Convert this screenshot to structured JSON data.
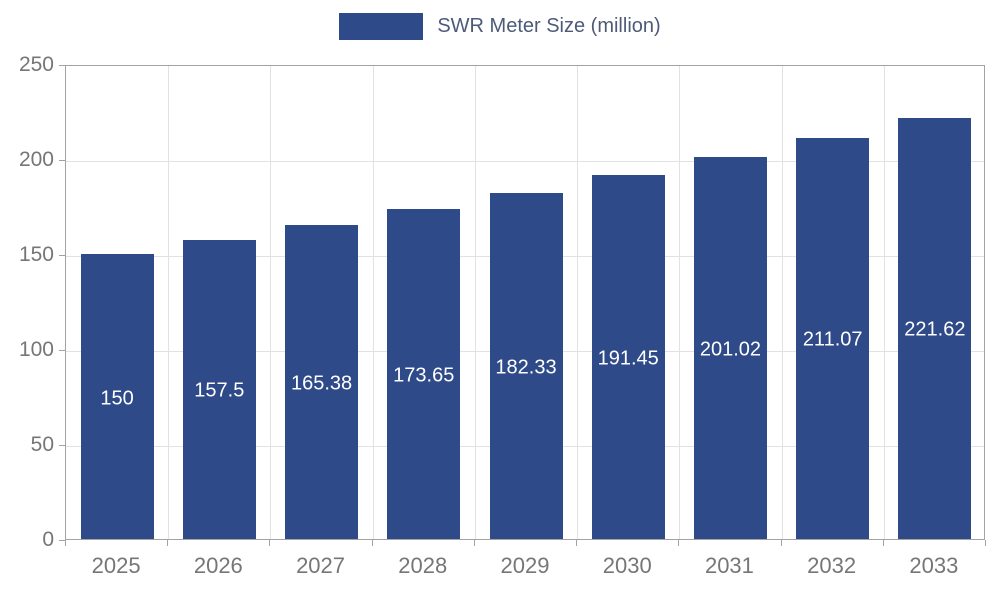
{
  "chart_data": {
    "type": "bar",
    "title": "SWR Meter Size (million)",
    "categories": [
      "2025",
      "2026",
      "2027",
      "2028",
      "2029",
      "2030",
      "2031",
      "2032",
      "2033"
    ],
    "values": [
      150,
      157.5,
      165.38,
      173.65,
      182.33,
      191.45,
      201.02,
      211.07,
      221.62
    ],
    "value_labels": [
      "150",
      "157.5",
      "165.38",
      "173.65",
      "182.33",
      "191.45",
      "201.02",
      "211.07",
      "221.62"
    ],
    "xlabel": "",
    "ylabel": "",
    "ylim": [
      0,
      250
    ],
    "yticks": [
      0,
      50,
      100,
      150,
      200,
      250
    ],
    "grid": true,
    "legend_position": "top",
    "bar_color": "#2e4a88",
    "value_label_color": "#ffffff",
    "legend_text_color": "#4d5b79",
    "axis_text_color": "#767676",
    "grid_color": "#e2e2e2",
    "axis_border_color": "#a3a3a3"
  }
}
